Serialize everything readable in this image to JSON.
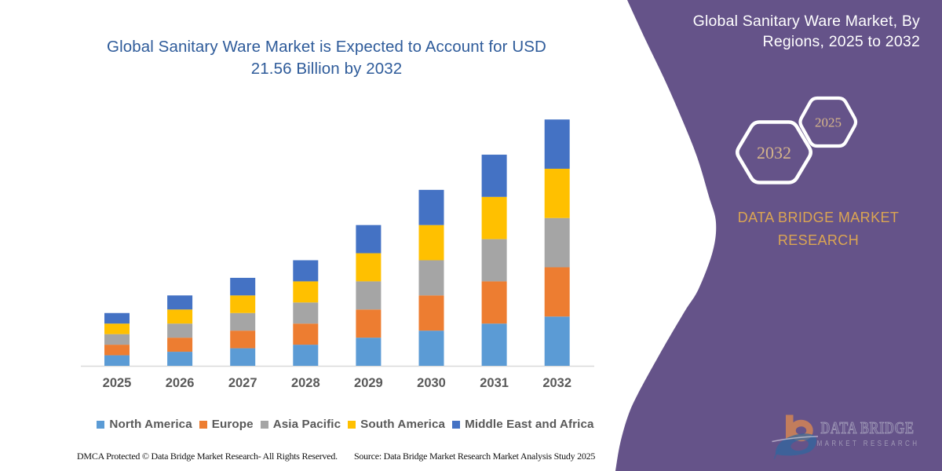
{
  "colors": {
    "purple_bg": "#655389",
    "title_blue": "#2E5B9A",
    "axis_gray": "#D9D9D9",
    "tick_gray": "#595959",
    "hex_label_tan": "#D6B58A",
    "brand_gold": "#DBA552",
    "panel_title_white": "#FFFFFF"
  },
  "chart_data": {
    "type": "bar",
    "stacked": true,
    "title_lines": [
      "Global Sanitary Ware Market is Expected to Account for USD",
      "21.56 Billion by 2032"
    ],
    "unit": "USD Billion",
    "categories": [
      "2025",
      "2026",
      "2027",
      "2028",
      "2029",
      "2030",
      "2031",
      "2032"
    ],
    "series": [
      {
        "name": "North America",
        "color": "#5B9BD5",
        "values": [
          0.924,
          1.232,
          1.54,
          1.848,
          2.464,
          3.08,
          3.696,
          4.312
        ]
      },
      {
        "name": "Europe",
        "color": "#ED7D31",
        "values": [
          0.924,
          1.232,
          1.54,
          1.848,
          2.464,
          3.08,
          3.696,
          4.312
        ]
      },
      {
        "name": "Asia Pacific",
        "color": "#A5A5A5",
        "values": [
          0.924,
          1.232,
          1.54,
          1.848,
          2.464,
          3.08,
          3.696,
          4.312
        ]
      },
      {
        "name": "South America",
        "color": "#FFC000",
        "values": [
          0.924,
          1.232,
          1.54,
          1.848,
          2.464,
          3.08,
          3.696,
          4.312
        ]
      },
      {
        "name": "Middle East and Africa",
        "color": "#4472C4",
        "values": [
          0.924,
          1.232,
          1.54,
          1.848,
          2.464,
          3.08,
          3.696,
          4.312
        ]
      }
    ],
    "totals": [
      4.62,
      6.16,
      7.7,
      9.24,
      12.32,
      15.4,
      18.48,
      21.56
    ],
    "ylim": [
      0,
      22.5
    ],
    "gridlines": false,
    "legend_position": "bottom"
  },
  "panel": {
    "title_lines": [
      "Global Sanitary Ware Market, By",
      "Regions, 2025 to 2032"
    ],
    "hexagons": [
      {
        "label": "2032"
      },
      {
        "label": "2025"
      }
    ],
    "brand_lines": [
      "DATA BRIDGE MARKET",
      "RESEARCH"
    ]
  },
  "watermark": {
    "name": "DATA BRIDGE",
    "tagline": "MARKET RESEARCH"
  },
  "footer": {
    "dmca": "DMCA Protected © Data Bridge Market Research-  All Rights Reserved.",
    "source": "Source: Data Bridge Market Research  Market Analysis Study 2025"
  }
}
